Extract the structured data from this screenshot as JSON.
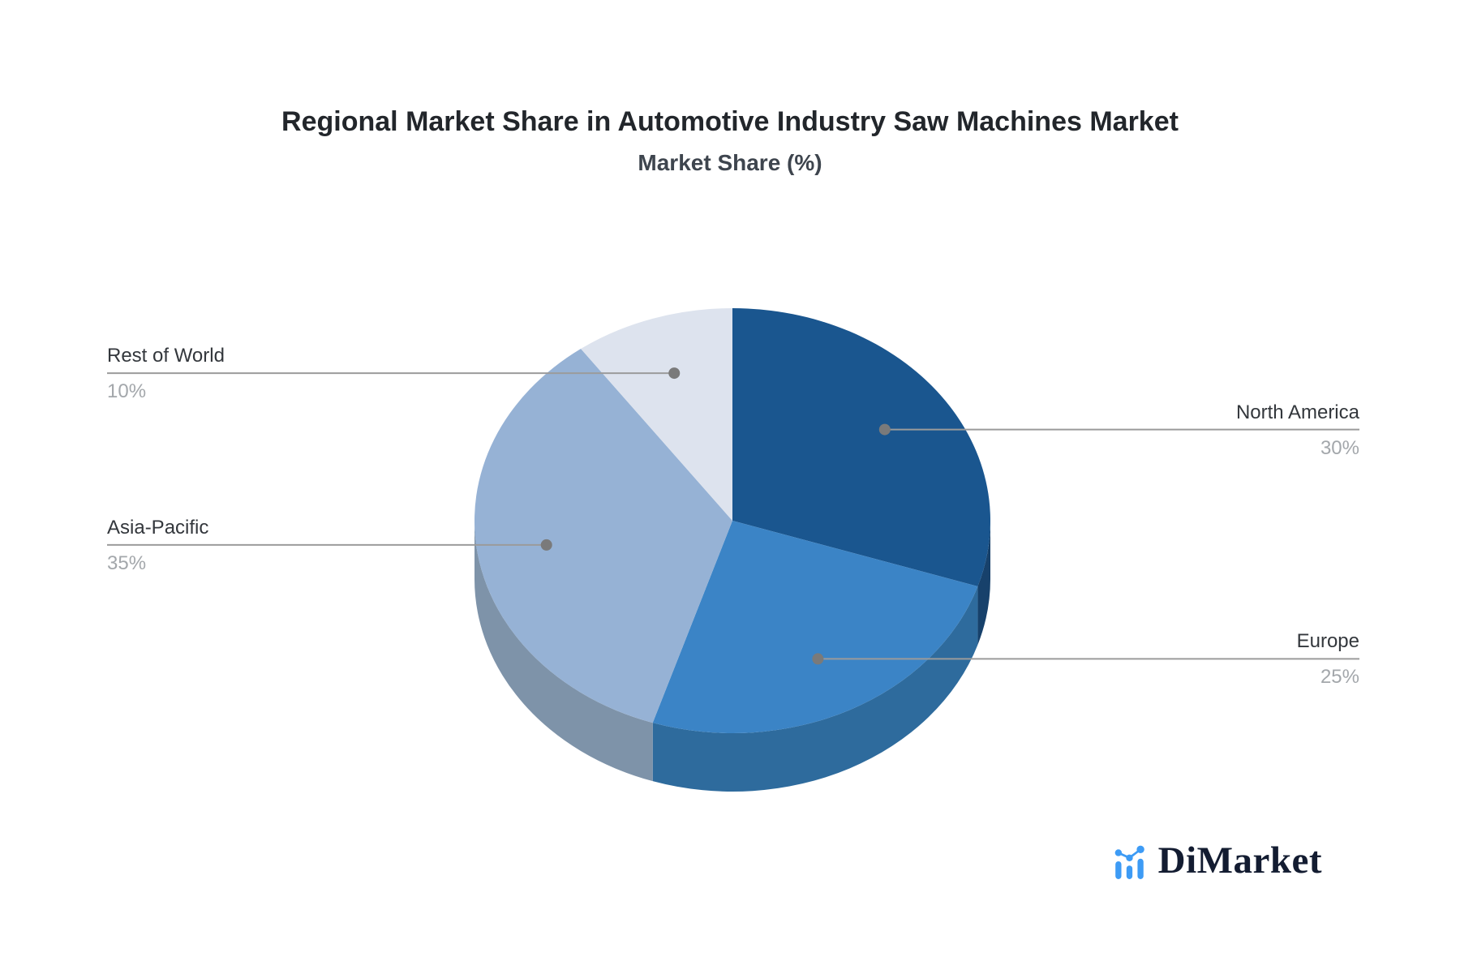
{
  "title": "Regional Market Share in Automotive Industry Saw Machines Market",
  "subtitle": "Market Share (%)",
  "brand": {
    "name": "DiMarket",
    "icon": "bar-line-chart-icon",
    "icon_color": "#3d9bf5",
    "text_color": "#131c31"
  },
  "style": {
    "leader_line_color": "#9b9b9b",
    "leader_dot_color": "#7a7a7a",
    "label_color": "#33373c",
    "percent_color": "#a3a7ab"
  },
  "chart_data": {
    "type": "pie",
    "title": "Regional Market Share in Automotive Industry Saw Machines Market",
    "subtitle": "Market Share (%)",
    "unit": "%",
    "effect": "3d",
    "start_angle_deg": 0,
    "direction": "clockwise",
    "slices": [
      {
        "label": "North America",
        "value": 30,
        "color": "#1a568f",
        "side_color": "#17416b",
        "label_side": "right"
      },
      {
        "label": "Europe",
        "value": 25,
        "color": "#3b84c6",
        "side_color": "#2e6b9d",
        "label_side": "right"
      },
      {
        "label": "Asia-Pacific",
        "value": 35,
        "color": "#96b2d5",
        "side_color": "#7e93a9",
        "label_side": "left"
      },
      {
        "label": "Rest of World",
        "value": 10,
        "color": "#dde3ee",
        "side_color": "#c3ccda",
        "label_side": "left"
      }
    ],
    "labels_show_percent": true,
    "legend": "none"
  }
}
